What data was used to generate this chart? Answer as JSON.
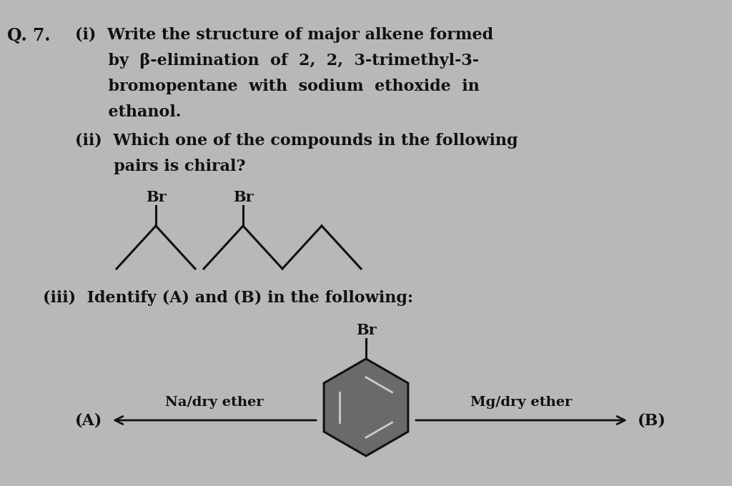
{
  "bg_color": "#b8b8b8",
  "text_color": "#111111",
  "br_label": "Br",
  "A_label": "(A)",
  "B_label": "(B)",
  "na_dry_ether": "Na/dry ether",
  "mg_dry_ether": "Mg/dry ether",
  "part_iii_text": "(iii)  Identify (A) and (B) in the following:"
}
